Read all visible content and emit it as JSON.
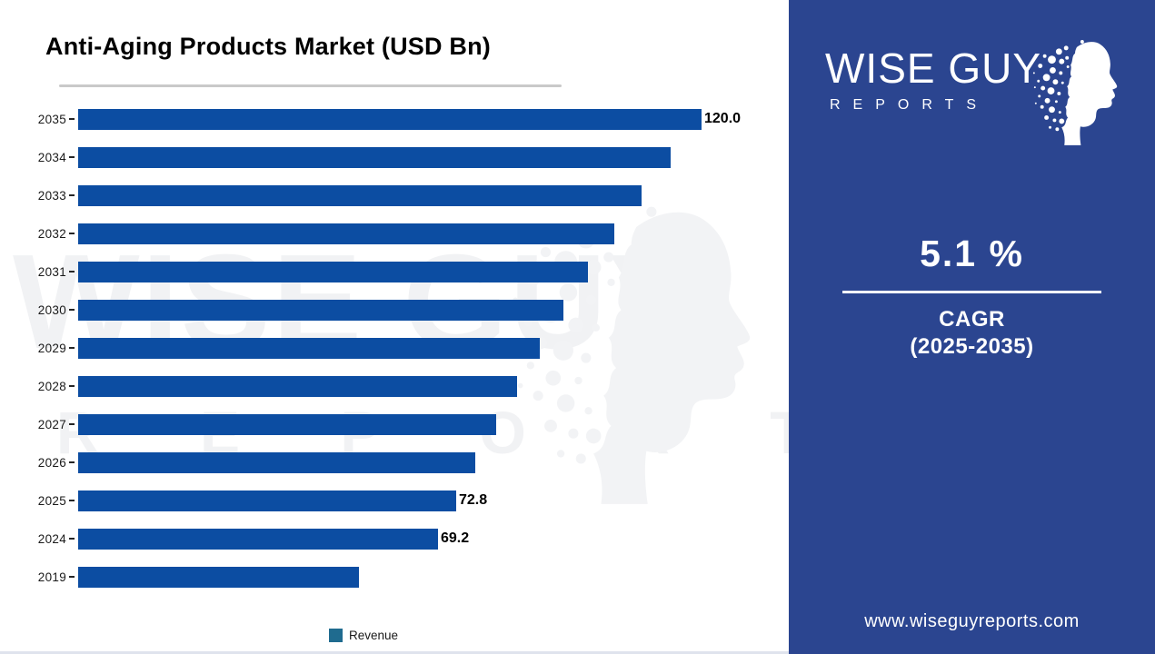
{
  "title": "Anti-Aging Products Market (USD Bn)",
  "chart_data": {
    "type": "bar",
    "orientation": "horizontal",
    "title": "Anti-Aging Products Market (USD Bn)",
    "categories": [
      "2035",
      "2034",
      "2033",
      "2032",
      "2031",
      "2030",
      "2029",
      "2028",
      "2027",
      "2026",
      "2025",
      "2024",
      "2019"
    ],
    "values": [
      120.0,
      114.0,
      108.5,
      103.2,
      98.1,
      93.4,
      88.8,
      84.5,
      80.4,
      76.5,
      72.8,
      69.2,
      54.0
    ],
    "bar_labels": [
      "120.0",
      null,
      null,
      null,
      null,
      null,
      null,
      null,
      null,
      null,
      "72.8",
      "69.2",
      null
    ],
    "series": [
      {
        "name": "Revenue",
        "color": "#0c4da2"
      }
    ],
    "xlabel": "",
    "ylabel": "",
    "xlim": [
      0,
      135.6
    ],
    "grid": false,
    "legend_position": "bottom"
  },
  "legend": {
    "label": "Revenue",
    "marker_color": "#1f6b8f"
  },
  "watermark": {
    "line1": "WISE GUY",
    "line2": "R E P O R T S"
  },
  "side_panel": {
    "logo_line1": "WISE GUY",
    "logo_line2": "REPORTS",
    "cagr_value": "5.1 %",
    "cagr_label_line1": "CAGR",
    "cagr_label_line2": "(2025-2035)",
    "website": "www.wiseguyreports.com"
  },
  "colors": {
    "bar": "#0c4da2",
    "panel": "#2b4590",
    "underline": "#c9c9c9",
    "watermark": "#f1f2f4",
    "watermark_face": "#f2f3f5",
    "bottom_strip": "#dfe3ed",
    "tick": "#262626"
  }
}
